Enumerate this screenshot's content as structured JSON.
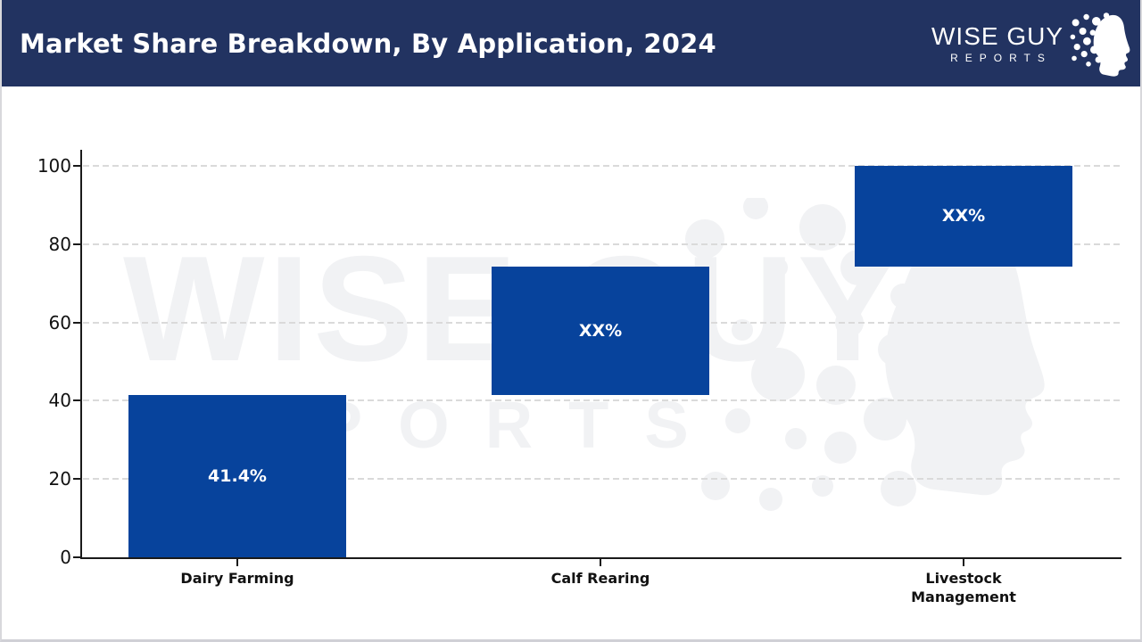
{
  "header": {
    "title": "Market Share Breakdown, By Application, 2024",
    "bg_color": "#223361",
    "logo": {
      "line1": "WISE GUY",
      "line2": "REPORTS"
    }
  },
  "watermark": {
    "line1": "WISE GUY",
    "line2": "REPORTS",
    "color": "#f1f2f4"
  },
  "chart_data": {
    "type": "bar",
    "subtype": "waterfall",
    "title": "Market Share Breakdown, By Application, 2024",
    "categories": [
      "Dairy Farming",
      "Calf Rearing",
      "Livestock Management"
    ],
    "segments": [
      {
        "category": "Dairy Farming",
        "start": 0,
        "end": 41.4,
        "label": "41.4%"
      },
      {
        "category": "Calf Rearing",
        "start": 41.4,
        "end": 74.3,
        "label": "XX%"
      },
      {
        "category": "Livestock Management",
        "start": 74.3,
        "end": 100,
        "label": "XX%"
      }
    ],
    "yticks": [
      0,
      20,
      40,
      60,
      80,
      100
    ],
    "ylim": [
      0,
      104
    ],
    "xlabel": "",
    "ylabel": "",
    "grid": "horizontal-dashed",
    "legend": "none",
    "bar_color": "#07439c",
    "bar_label_color": "#ffffff",
    "grid_color": "#dadada",
    "axis_color": "#1a1a1a",
    "tick_label_color": "#111111"
  }
}
